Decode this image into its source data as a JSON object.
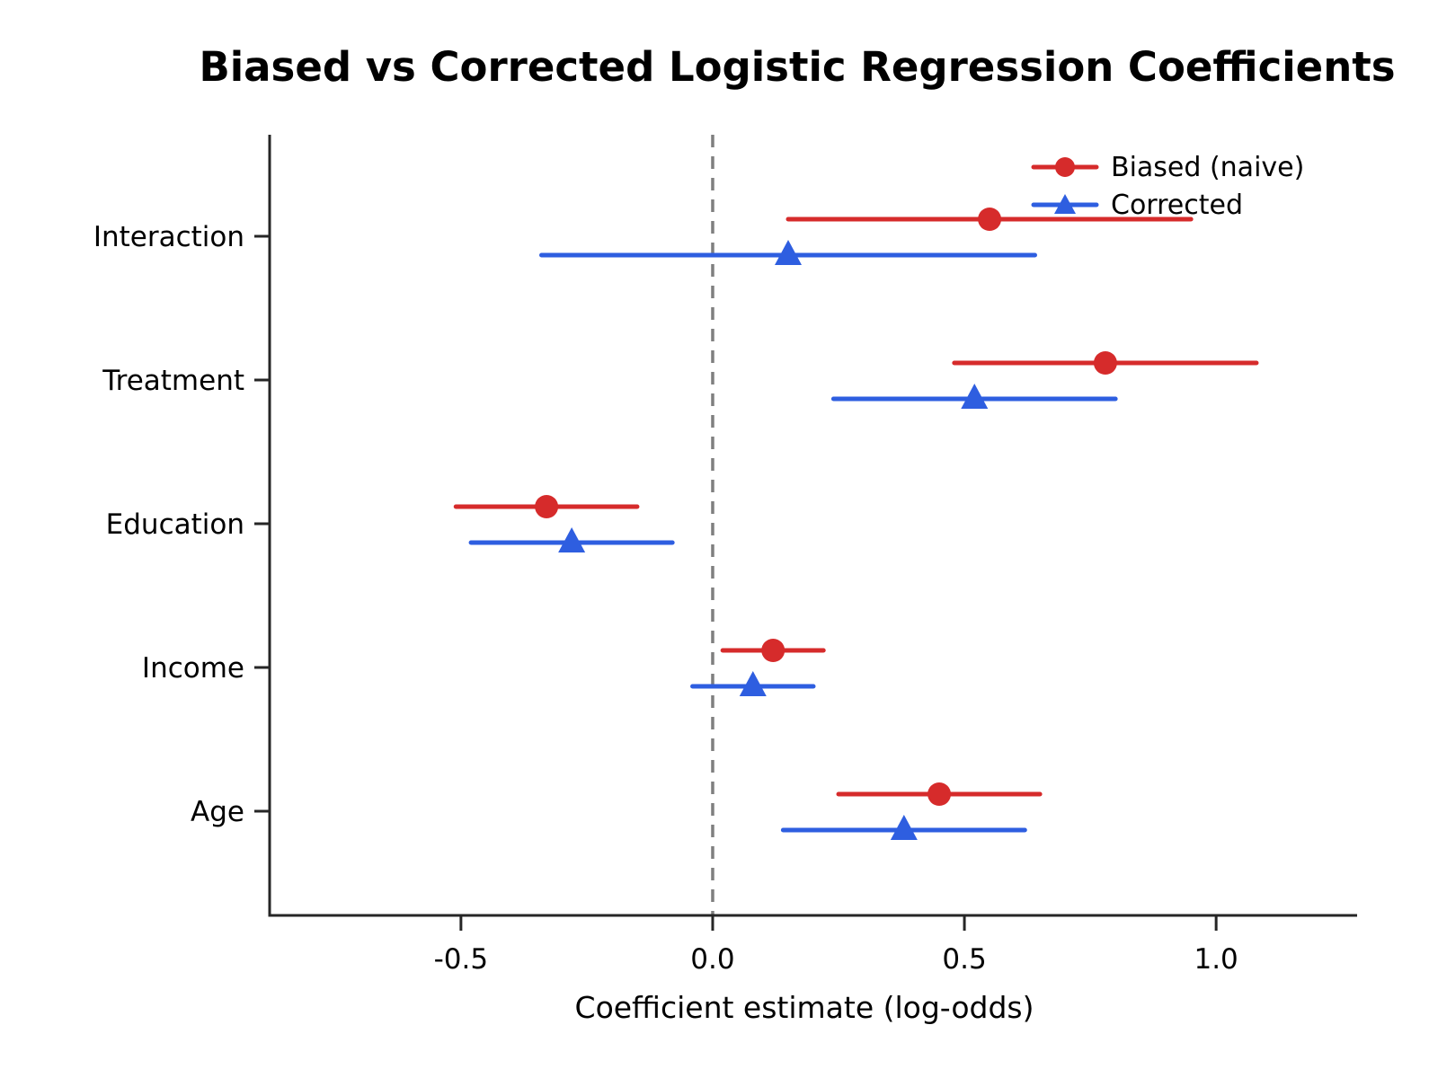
{
  "figure": {
    "background": "#ffffff",
    "axis_color": "#262626",
    "text_color": "#000000"
  },
  "chart_data": {
    "type": "scatter",
    "subtype": "forest-plot (point estimates with horizontal CI error bars, dodged by series)",
    "title": "Biased vs Corrected Logistic Regression Coefficients",
    "xlabel": "Coefficient estimate (log-odds)",
    "ylabel": "",
    "categories_top_to_bottom": [
      "Interaction",
      "Treatment",
      "Education",
      "Income",
      "Age"
    ],
    "xlim": [
      -0.88,
      1.28
    ],
    "xticks": [
      {
        "value": -0.5,
        "label": "-0.5"
      },
      {
        "value": 0.0,
        "label": "0.0"
      },
      {
        "value": 0.5,
        "label": "0.5"
      },
      {
        "value": 1.0,
        "label": "1.0"
      }
    ],
    "grid": false,
    "zero_reference_line": {
      "value": 0.0,
      "style": "dashed",
      "color": "#7f7f7f"
    },
    "legend": {
      "position": "top-right-inside",
      "frame": false
    },
    "series": [
      {
        "name": "Biased (naive)",
        "color": "#d62b2b",
        "marker": "circle",
        "points": [
          {
            "category": "Interaction",
            "estimate": 0.55,
            "ci_low": 0.15,
            "ci_high": 0.95
          },
          {
            "category": "Treatment",
            "estimate": 0.78,
            "ci_low": 0.48,
            "ci_high": 1.08
          },
          {
            "category": "Education",
            "estimate": -0.33,
            "ci_low": -0.51,
            "ci_high": -0.15
          },
          {
            "category": "Income",
            "estimate": 0.12,
            "ci_low": 0.02,
            "ci_high": 0.22
          },
          {
            "category": "Age",
            "estimate": 0.45,
            "ci_low": 0.25,
            "ci_high": 0.65
          }
        ]
      },
      {
        "name": "Corrected",
        "color": "#2e5ee0",
        "marker": "triangle-up",
        "points": [
          {
            "category": "Interaction",
            "estimate": 0.15,
            "ci_low": -0.34,
            "ci_high": 0.64
          },
          {
            "category": "Treatment",
            "estimate": 0.52,
            "ci_low": 0.24,
            "ci_high": 0.8
          },
          {
            "category": "Education",
            "estimate": -0.28,
            "ci_low": -0.48,
            "ci_high": -0.08
          },
          {
            "category": "Income",
            "estimate": 0.08,
            "ci_low": -0.04,
            "ci_high": 0.2
          },
          {
            "category": "Age",
            "estimate": 0.38,
            "ci_low": 0.14,
            "ci_high": 0.62
          }
        ]
      }
    ]
  }
}
